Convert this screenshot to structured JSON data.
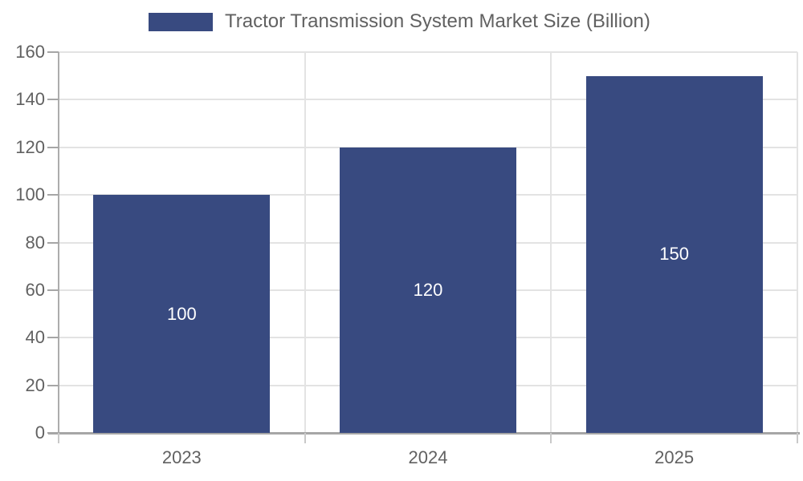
{
  "legend": {
    "label": "Tractor Transmission System Market Size (Billion)"
  },
  "chart_data": {
    "type": "bar",
    "title": "Tractor Transmission System Market Size (Billion)",
    "categories": [
      "2023",
      "2024",
      "2025"
    ],
    "values": [
      100,
      120,
      150
    ],
    "data_labels": [
      "100",
      "120",
      "150"
    ],
    "yticks": [
      0,
      20,
      40,
      60,
      80,
      100,
      120,
      140,
      160
    ],
    "ylim": [
      0,
      160
    ],
    "xlabel": "",
    "ylabel": "",
    "grid": true,
    "legend_position": "top",
    "colors": {
      "bar": "#384A80",
      "bar_label": "#FFFFFF",
      "axis_text": "#616161",
      "gridline": "#E3E3E3",
      "axis_line": "#A6A6A6",
      "spine": "#ADADAD",
      "tick": "#C9C9C9",
      "background": "#FFFFFF"
    }
  }
}
